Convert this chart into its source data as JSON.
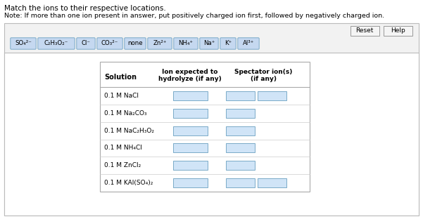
{
  "title_line1": "Match the ions to their respective locations.",
  "title_line2": "Note: If more than one ion present in answer, put positively charged ion first, followed by negatively charged ion.",
  "ion_labels": [
    "SO₄²⁻",
    "C₂H₃O₂⁻",
    "Cl⁻",
    "CO₃²⁻",
    "none",
    "Zn²⁺",
    "NH₄⁺",
    "Na⁺",
    "K⁺",
    "Al³⁺"
  ],
  "ion_widths": [
    34,
    50,
    24,
    34,
    28,
    32,
    32,
    24,
    20,
    28
  ],
  "solutions": [
    "0.1 M NaCl",
    "0.1 M Na₂CO₃",
    "0.1 M NaC₂H₃O₂",
    "0.1 M NH₄Cl",
    "0.1 M ZnCl₂",
    "0.1 M KAl(SO₄)₂"
  ],
  "row_boxes": [
    {
      "hydrolyze": 1,
      "spectator": 2
    },
    {
      "hydrolyze": 1,
      "spectator": 1
    },
    {
      "hydrolyze": 1,
      "spectator": 1
    },
    {
      "hydrolyze": 1,
      "spectator": 1
    },
    {
      "hydrolyze": 1,
      "spectator": 1
    },
    {
      "hydrolyze": 1,
      "spectator": 2
    }
  ],
  "outer_bg": "#eeeeee",
  "panel_bg": "#f5f5f5",
  "inner_bg": "#ffffff",
  "ion_btn_bg": "#c5d8f0",
  "ion_btn_border": "#7aaac8",
  "table_border": "#aaaaaa",
  "answer_box_bg": "#d0e4f7",
  "answer_box_border": "#7aaac8",
  "btn_bg": "#f0f0f0",
  "btn_border": "#999999",
  "text_color": "#000000",
  "sep_color": "#cccccc"
}
